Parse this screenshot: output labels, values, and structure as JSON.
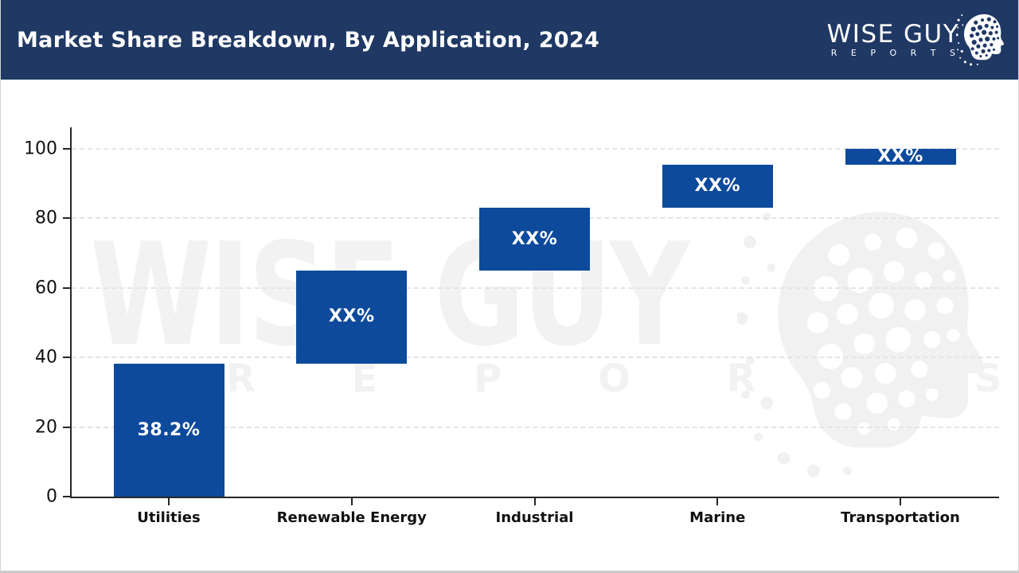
{
  "header": {
    "title": "Market Share Breakdown, By Application, 2024",
    "logo": {
      "line1": "WISE GUY",
      "line2": "R E P O R T S"
    }
  },
  "watermark": {
    "line1": "WISE GUY",
    "line2": "R E P O R T S"
  },
  "colors": {
    "header_bg": "#1f3864",
    "bar": "#0d4a9c",
    "grid": "#e4e4e4",
    "axis": "#262626",
    "watermark": "#f2f2f2",
    "bar_label_text": "#ffffff",
    "title_text": "#ffffff"
  },
  "chart_data": {
    "type": "bar",
    "subtype": "waterfall",
    "title": "Market Share Breakdown, By Application, 2024",
    "categories": [
      "Utilities",
      "Renewable Energy",
      "Industrial",
      "Marine",
      "Transportation"
    ],
    "segments": [
      {
        "category": "Utilities",
        "start": 0,
        "end": 38.2,
        "delta": 38.2,
        "label": "38.2%"
      },
      {
        "category": "Renewable Energy",
        "start": 38.2,
        "end": 65,
        "delta": 26.8,
        "label": "XX%"
      },
      {
        "category": "Industrial",
        "start": 65,
        "end": 83,
        "delta": 18,
        "label": "XX%"
      },
      {
        "category": "Marine",
        "start": 83,
        "end": 95.5,
        "delta": 12.5,
        "label": "XX%"
      },
      {
        "category": "Transportation",
        "start": 95.5,
        "end": 100,
        "delta": 4.5,
        "label": "XX%"
      }
    ],
    "yticks": [
      0,
      20,
      40,
      60,
      80,
      100
    ],
    "ylim": [
      0,
      106
    ],
    "xlabel": "",
    "ylabel": "",
    "grid": "horizontal-dashed",
    "legend": "none",
    "value_labels": "inside-center"
  }
}
